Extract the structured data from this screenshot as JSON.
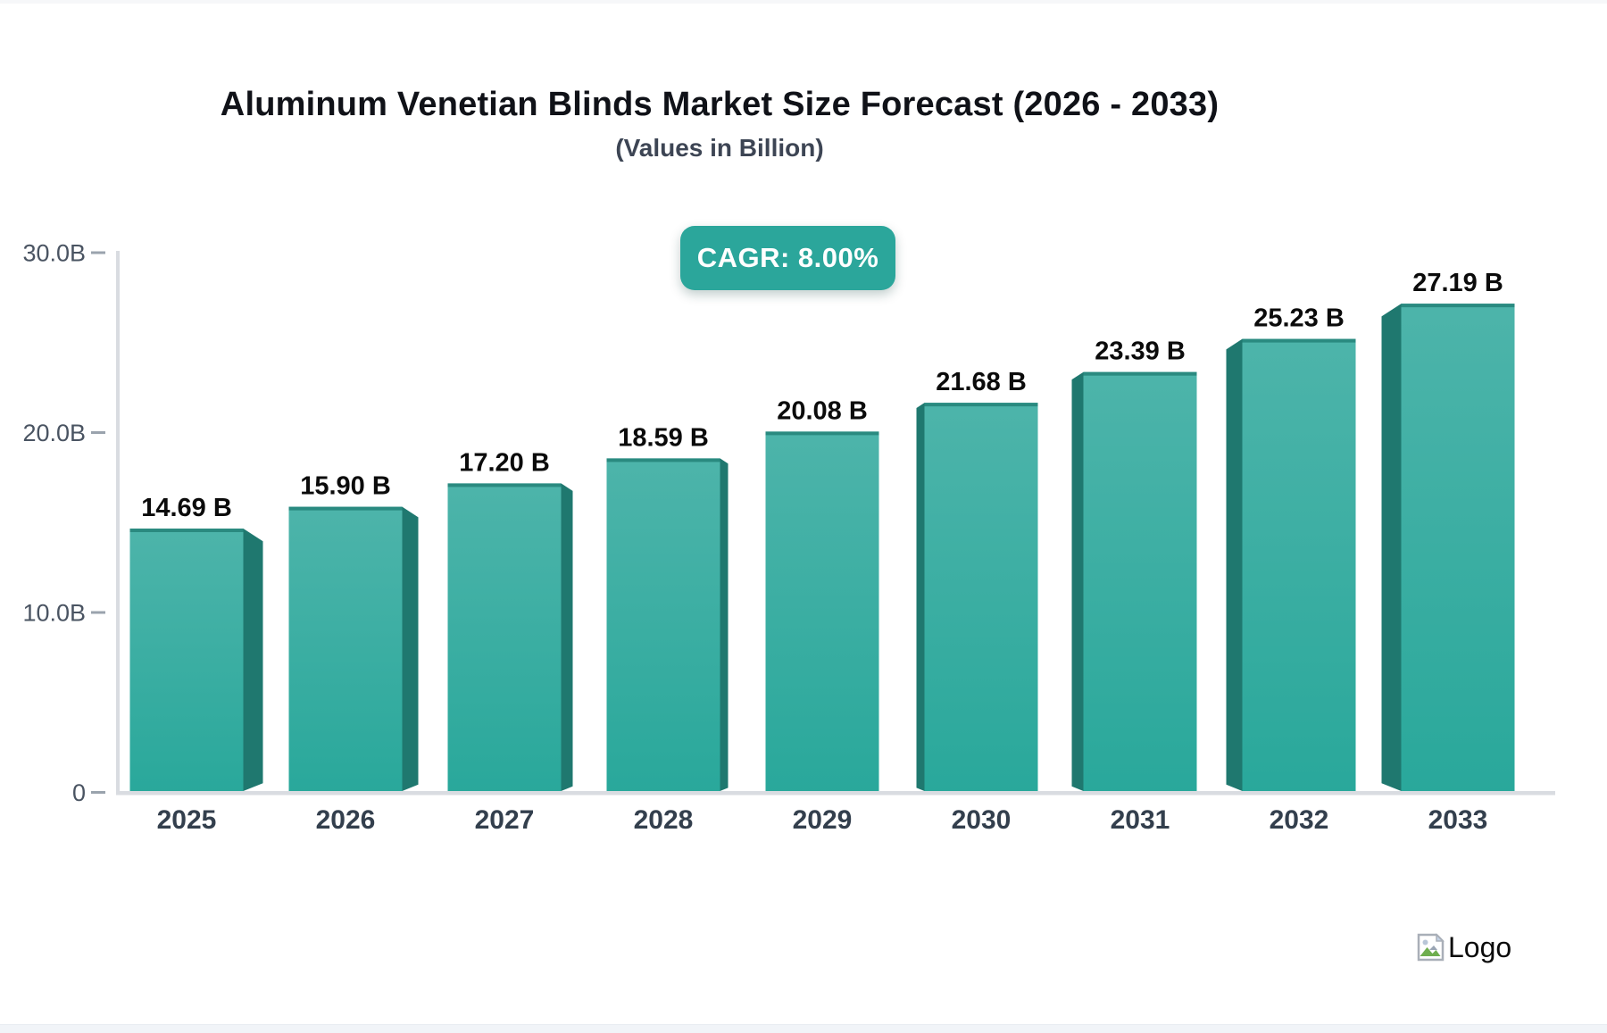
{
  "page": {
    "accent_color": "#2BA69B",
    "background": "#ffffff"
  },
  "header": {
    "title": "Aluminum Venetian Blinds Market Size Forecast (2026 - 2033)",
    "subtitle": "(Values in Billion)",
    "cagr_badge": "CAGR: 8.00%"
  },
  "footer": {
    "logo_alt": "Logo"
  },
  "chart_data": {
    "type": "bar",
    "title": "Aluminum Venetian Blinds Market Size Forecast (2026 - 2033)",
    "subtitle": "(Values in Billion)",
    "annotation": "CAGR: 8.00%",
    "categories": [
      "2025",
      "2026",
      "2027",
      "2028",
      "2029",
      "2030",
      "2031",
      "2032",
      "2033"
    ],
    "values": [
      14.69,
      15.9,
      17.2,
      18.59,
      20.08,
      21.68,
      23.39,
      25.23,
      27.19
    ],
    "value_labels": [
      "14.69 B",
      "15.90 B",
      "17.20 B",
      "18.59 B",
      "20.08 B",
      "21.68 B",
      "23.39 B",
      "25.23 B",
      "27.19 B"
    ],
    "unit": "Billion",
    "xlabel": "",
    "ylabel": "",
    "ylim": [
      0,
      30
    ],
    "yticks": [
      {
        "value": 0,
        "label": "0"
      },
      {
        "value": 10,
        "label": "10.0B"
      },
      {
        "value": 20,
        "label": "20.0B"
      },
      {
        "value": 30,
        "label": "30.0B"
      }
    ],
    "grid": false,
    "legend": "none",
    "bar_style": "3d-perspective-toward-center",
    "colors": {
      "bar_gradient_top": "#4DB4AA",
      "bar_gradient_bottom": "#29A89B",
      "bar_top_edge": "#2A8A80",
      "bar_side": "#1F786F",
      "axis_line": "#D9DCE1",
      "tick_mark": "#9AA3AD",
      "tick_label": "#4A5462",
      "category_label": "#333F4D",
      "value_label": "#0B0B0B"
    }
  }
}
